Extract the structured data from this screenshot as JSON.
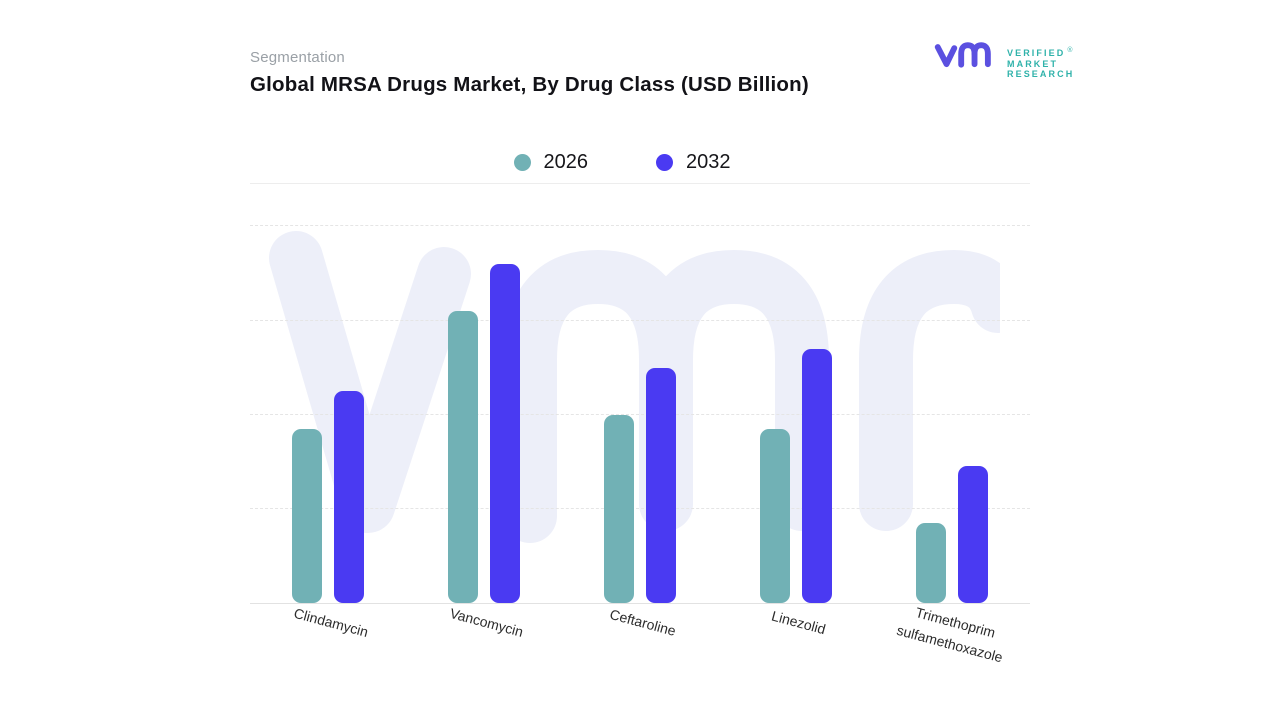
{
  "page": {
    "eyebrow": "Segmentation",
    "title": "Global MRSA Drugs Market, By Drug Class (USD Billion)"
  },
  "logo": {
    "lines": [
      "VERIFIED",
      "MARKET",
      "RESEARCH"
    ],
    "registered": "®",
    "mark_color": "#5b50e0",
    "text_color": "#2fb2aa"
  },
  "colors": {
    "watermark": "#edeff9",
    "gridline": "#e5e5e5",
    "baseline": "#e2e2e2"
  },
  "chart_data": {
    "type": "bar",
    "title": "Global MRSA Drugs Market, By Drug Class (USD Billion)",
    "categories": [
      "Clindamycin",
      "Vancomycin",
      "Ceftaroline",
      "Linezolid",
      "Trimethoprim\nsulfamethoxazole"
    ],
    "series": [
      {
        "name": "2026",
        "color": "#71b1b5",
        "values": [
          1.85,
          3.1,
          2.0,
          1.85,
          0.85
        ]
      },
      {
        "name": "2032",
        "color": "#4a3af2",
        "values": [
          2.25,
          3.6,
          2.5,
          2.7,
          1.45
        ]
      }
    ],
    "xlabel": "",
    "ylabel": "",
    "y_axis": {
      "min": 0,
      "max": 4.45,
      "tick_step": 1,
      "tick_labels_visible": false
    },
    "grid": {
      "horizontal": true,
      "style": "dashed"
    },
    "legend_position": "top-center",
    "values_estimated_from_gridlines": true
  }
}
